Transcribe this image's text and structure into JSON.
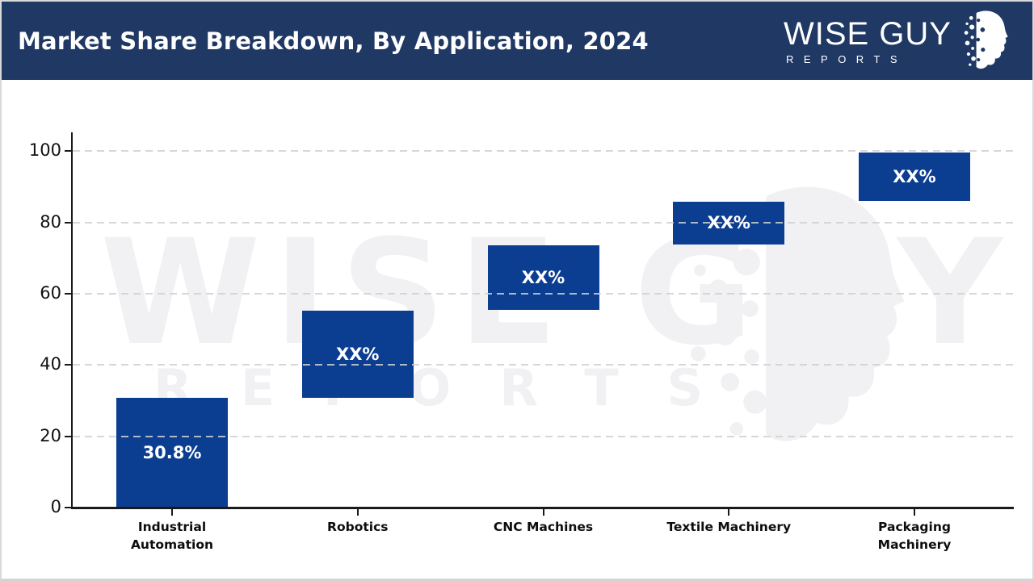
{
  "header": {
    "title": "Market Share Breakdown, By Application, 2024",
    "logo": {
      "line1": "WISE GUY",
      "line2": "REPORTS"
    }
  },
  "watermark": {
    "line1": "WISE GUY",
    "line2": "REPORTS"
  },
  "colors": {
    "header_bg": "#1f3864",
    "bar": "#0b3d91",
    "bar_label_text": "#ffffff",
    "grid": "#d0d0d0",
    "axis": "#1a1a1a",
    "watermark": "#f1f1f4"
  },
  "chart_data": {
    "type": "bar",
    "subtype": "waterfall",
    "title": "Market Share Breakdown, By Application, 2024",
    "categories": [
      "Industrial Automation",
      "Robotics",
      "CNC Machines",
      "Textile Machinery",
      "Packaging Machinery"
    ],
    "category_label_lines": [
      [
        "Industrial",
        "Automation"
      ],
      [
        "Robotics"
      ],
      [
        "CNC Machines"
      ],
      [
        "Textile Machinery"
      ],
      [
        "Packaging",
        "Machinery"
      ]
    ],
    "bars": [
      {
        "category": "Industrial Automation",
        "start": 0,
        "end": 30.8,
        "label": "30.8%"
      },
      {
        "category": "Robotics",
        "start": 30.8,
        "end": 55.2,
        "label": "XX%"
      },
      {
        "category": "CNC Machines",
        "start": 55.4,
        "end": 73.6,
        "label": "XX%"
      },
      {
        "category": "Textile Machinery",
        "start": 73.8,
        "end": 85.9,
        "label": "XX%"
      },
      {
        "category": "Packaging Machinery",
        "start": 86.1,
        "end": 99.7,
        "label": "XX%"
      }
    ],
    "xlabel": "",
    "ylabel": "",
    "ylim": [
      0,
      100
    ],
    "yticks": [
      0,
      20,
      40,
      60,
      80,
      100
    ],
    "grid": "horizontal-dashed",
    "legend": null
  }
}
